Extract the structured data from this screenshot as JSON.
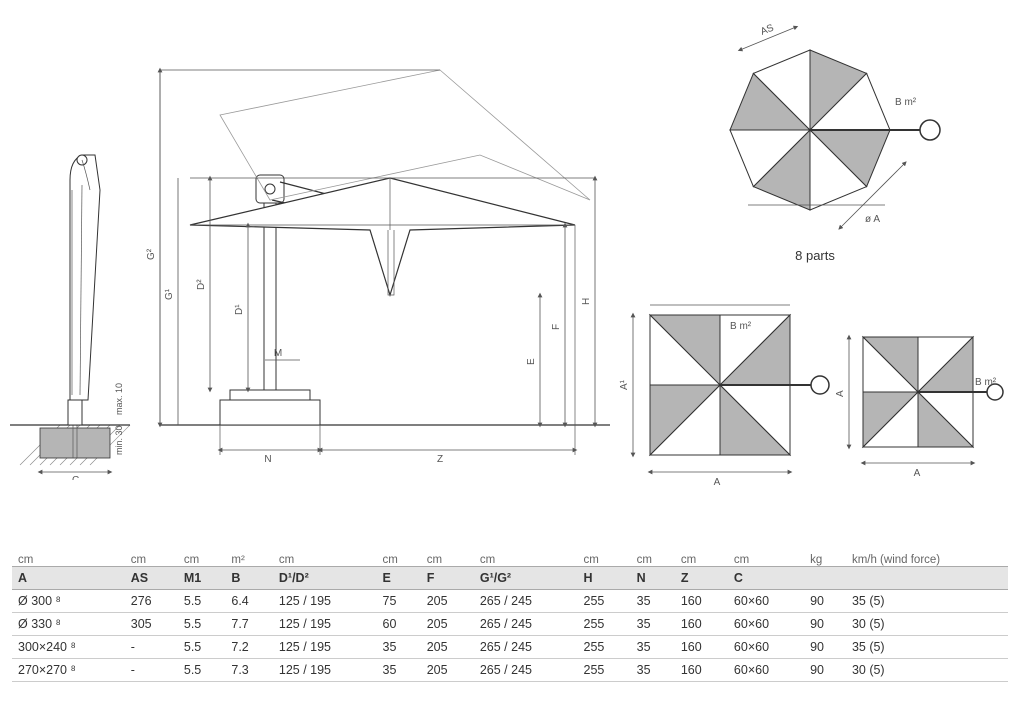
{
  "colors": {
    "shade": "#b5b5b5",
    "line": "#555555",
    "part": "#333333",
    "hatch": "#888888",
    "bg": "#ffffff",
    "header_bg": "#e5e5e5"
  },
  "side_view": {
    "labels": {
      "C": "C",
      "max10": "max. 10",
      "min30": "min. 30",
      "G2": "G²",
      "G1": "G¹",
      "D2": "D²",
      "D1": "D¹",
      "M": "M",
      "N": "N",
      "Z": "Z",
      "E": "E",
      "F": "F",
      "H": "H"
    }
  },
  "octagon": {
    "labels": {
      "AS": "AS",
      "Bm2": "B m²",
      "diaA": "ø A"
    },
    "caption": "8 parts"
  },
  "square_large": {
    "labels": {
      "Bm2": "B m²",
      "A1": "A¹",
      "A": "A"
    }
  },
  "square_small": {
    "labels": {
      "Bm2": "B m²",
      "A_side": "A",
      "A_bottom": "A"
    }
  },
  "table": {
    "units": [
      "cm",
      "cm",
      "cm",
      "m²",
      "cm",
      "cm",
      "cm",
      "cm",
      "cm",
      "cm",
      "cm",
      "cm",
      "kg",
      "km/h (wind force)"
    ],
    "headers": [
      "A",
      "AS",
      "M1",
      "B",
      "D¹/D²",
      "E",
      "F",
      "G¹/G²",
      "H",
      "N",
      "Z",
      "C",
      "",
      ""
    ],
    "header_extra_cols": {
      "kg_idx": 12,
      "wind_idx": 13
    },
    "rows": [
      [
        "Ø 300 ⁸",
        "276",
        "5.5",
        "6.4",
        "125 / 195",
        "75",
        "205",
        "265 / 245",
        "255",
        "35",
        "160",
        "60×60",
        "90",
        "35 (5)"
      ],
      [
        "Ø 330 ⁸",
        "305",
        "5.5",
        "7.7",
        "125 / 195",
        "60",
        "205",
        "265 / 245",
        "255",
        "35",
        "160",
        "60×60",
        "90",
        "30 (5)"
      ],
      [
        "300×240 ⁸",
        "-",
        "5.5",
        "7.2",
        "125 / 195",
        "35",
        "205",
        "265 / 245",
        "255",
        "35",
        "160",
        "60×60",
        "90",
        "35 (5)"
      ],
      [
        "270×270 ⁸",
        "-",
        "5.5",
        "7.3",
        "125 / 195",
        "35",
        "205",
        "265 / 245",
        "255",
        "35",
        "160",
        "60×60",
        "90",
        "30 (5)"
      ]
    ]
  }
}
